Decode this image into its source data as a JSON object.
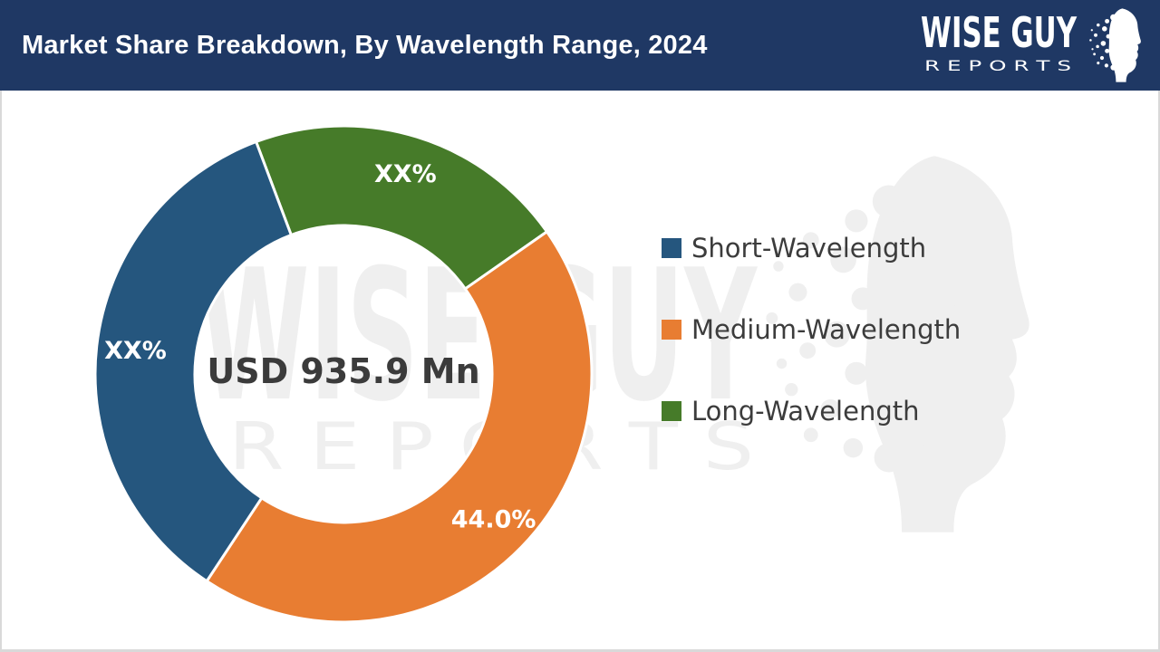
{
  "header": {
    "title": "Market Share Breakdown, By Wavelength Range, 2024",
    "logo": {
      "line1": "WISE GUY",
      "line2": "R E P O R T S"
    }
  },
  "watermark": {
    "line1": "WISE GUY",
    "line2": "R E P O R T S"
  },
  "colors": {
    "header_bg": "#1f3864",
    "title_text": "#ffffff",
    "short_wavelength": "#25567e",
    "medium_wavelength": "#e87d32",
    "long_wavelength": "#467b29",
    "center_text": "#3b3b3b",
    "watermark": "#efefef",
    "page_border": "#d9d9d9"
  },
  "chart_data": {
    "type": "pie",
    "subtype": "donut",
    "title": "Market Share Breakdown, By Wavelength Range, 2024",
    "center_label": "USD 935.9 Mn",
    "unit": "percent",
    "legend_position": "right",
    "inner_radius_ratio": 0.6,
    "clockwise": true,
    "rotation_deg": -20.6,
    "draw_order_clockwise": [
      "Long-Wavelength",
      "Medium-Wavelength",
      "Short-Wavelength"
    ],
    "segments": [
      {
        "label": "Short-Wavelength",
        "value_pct": 35,
        "display_label": "XX%",
        "color": "#25567e"
      },
      {
        "label": "Medium-Wavelength",
        "value_pct": 44,
        "display_label": "44.0%",
        "color": "#e87d32"
      },
      {
        "label": "Long-Wavelength",
        "value_pct": 21,
        "display_label": "XX%",
        "color": "#467b29"
      }
    ]
  }
}
